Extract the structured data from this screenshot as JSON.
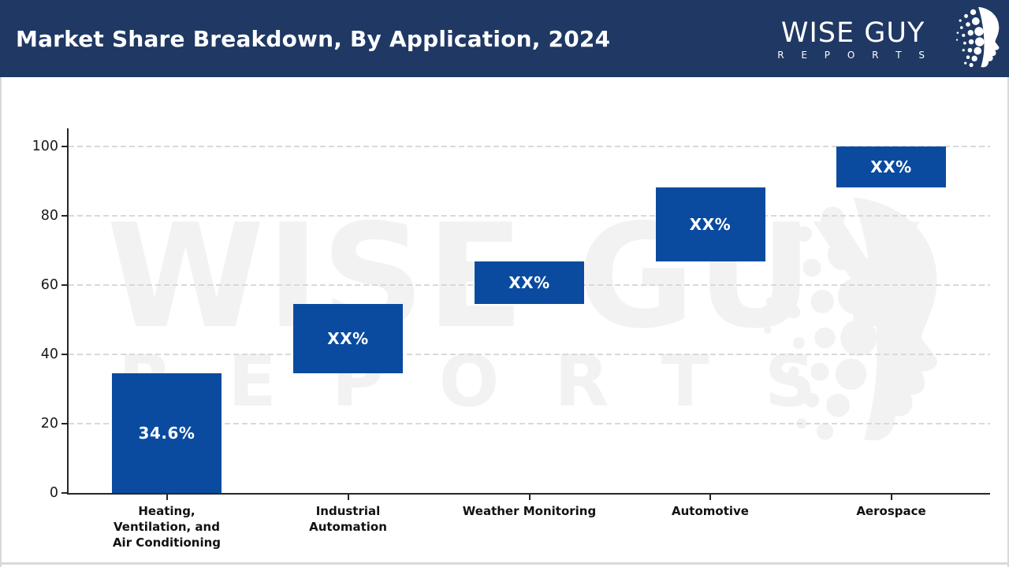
{
  "header": {
    "title": "Market Share Breakdown, By Application, 2024",
    "logo": {
      "line1": "WISE GUY",
      "line2": "R E P O R T S"
    }
  },
  "watermark": {
    "line1": "WISE GUY",
    "line2": "REPORTS"
  },
  "chart_data": {
    "type": "bar",
    "subtype": "waterfall",
    "title": "Market Share Breakdown, By Application, 2024",
    "xlabel": "",
    "ylabel": "",
    "ylim": [
      0,
      100
    ],
    "yticks": [
      0,
      20,
      40,
      60,
      80,
      100
    ],
    "grid": "horizontal-dashed",
    "legend": "none",
    "categories": [
      {
        "name": "Heating, Ventilation, and Air Conditioning",
        "lines": [
          "Heating,",
          "Ventilation, and",
          "Air Conditioning"
        ]
      },
      {
        "name": "Industrial Automation",
        "lines": [
          "Industrial",
          "Automation"
        ]
      },
      {
        "name": "Weather Monitoring",
        "lines": [
          "Weather Monitoring"
        ]
      },
      {
        "name": "Automotive",
        "lines": [
          "Automotive"
        ]
      },
      {
        "name": "Aerospace",
        "lines": [
          "Aerospace"
        ]
      }
    ],
    "segments": [
      {
        "category": "Heating, Ventilation, and Air Conditioning",
        "start": 0,
        "end": 34.6,
        "label": "34.6%"
      },
      {
        "category": "Industrial Automation",
        "start": 34.6,
        "end": 54.6,
        "label": "XX%"
      },
      {
        "category": "Weather Monitoring",
        "start": 54.6,
        "end": 66.9,
        "label": "XX%"
      },
      {
        "category": "Automotive",
        "start": 66.9,
        "end": 88.2,
        "label": "XX%"
      },
      {
        "category": "Aerospace",
        "start": 88.2,
        "end": 100,
        "label": "XX%"
      }
    ]
  },
  "colors": {
    "header_bg": "#1f3864",
    "bar": "#0a4b9f",
    "bar_label": "#ffffff",
    "grid": "#d9d9d9",
    "axis": "#262626",
    "watermark": "#f2f2f2"
  }
}
